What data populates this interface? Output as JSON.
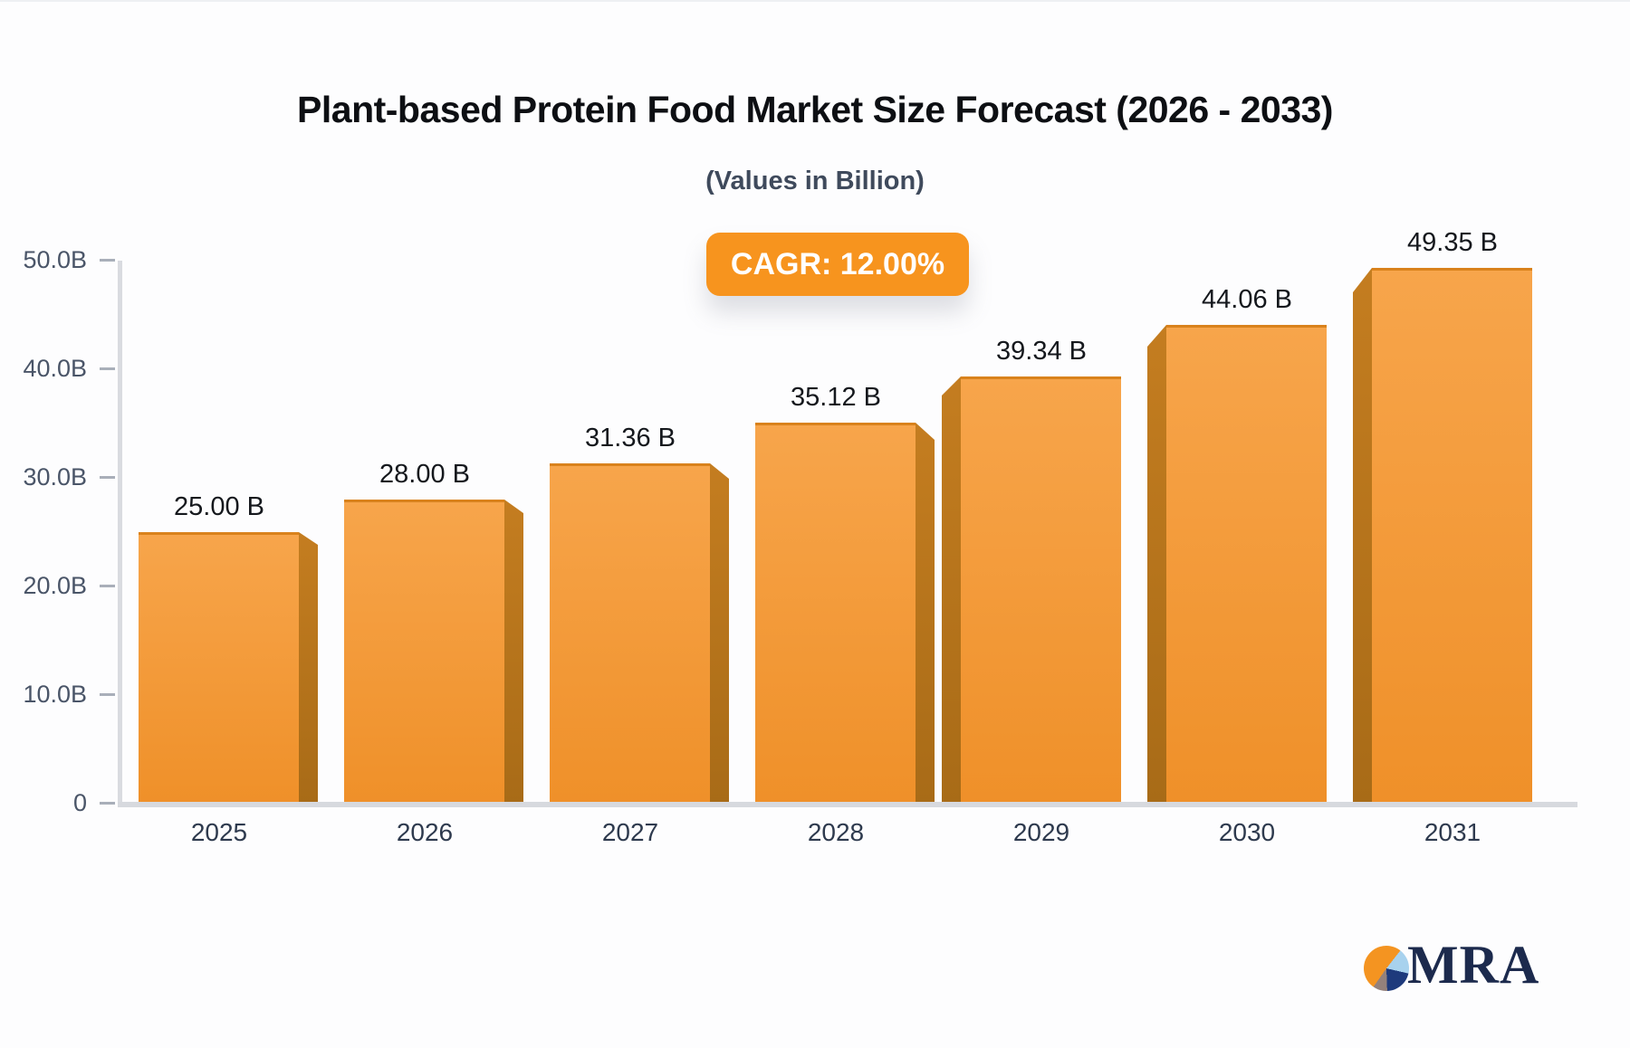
{
  "title": "Plant-based Protein Food Market Size Forecast (2026 - 2033)",
  "subtitle": "(Values in Billion)",
  "badge": {
    "label": "CAGR: 12.00%",
    "bg_color": "#F7941E",
    "text_color": "#FFFFFF"
  },
  "chart_data": {
    "type": "bar",
    "categories": [
      "2025",
      "2026",
      "2027",
      "2028",
      "2029",
      "2030",
      "2031"
    ],
    "values": [
      25.0,
      28.0,
      31.36,
      35.12,
      39.34,
      44.06,
      49.35
    ],
    "value_labels": [
      "25.00 B",
      "28.00 B",
      "31.36 B",
      "35.12 B",
      "39.34 B",
      "44.06 B",
      "49.35 B"
    ],
    "y_ticks": [
      {
        "label": "50.0B",
        "value": 50
      },
      {
        "label": "40.0B",
        "value": 40
      },
      {
        "label": "30.0B",
        "value": 30
      },
      {
        "label": "20.0B",
        "value": 20
      },
      {
        "label": "10.0B",
        "value": 10
      },
      {
        "label": "0",
        "value": 0
      }
    ],
    "ylim": [
      0,
      50
    ],
    "xlabel": "",
    "ylabel": "",
    "grid": false,
    "legend": "none",
    "bar_style": "3d-extruded",
    "colors": {
      "face_top": "#F7A54B",
      "face_bottom": "#EF9029",
      "face_top_edge": "#D9821C",
      "side_top": "#C47D20",
      "side_bottom": "#A86B17",
      "axis_line": "#D9DBE0",
      "tick_text": "#4A5568",
      "value_text": "#15181D",
      "category_text": "#2E3A4E"
    }
  },
  "logo": {
    "text": "MRA",
    "pie_segments": {
      "orange": "#F49421",
      "light_blue": "#A8D2EE",
      "navy": "#1E3A7C",
      "taupe": "#94817B"
    }
  }
}
